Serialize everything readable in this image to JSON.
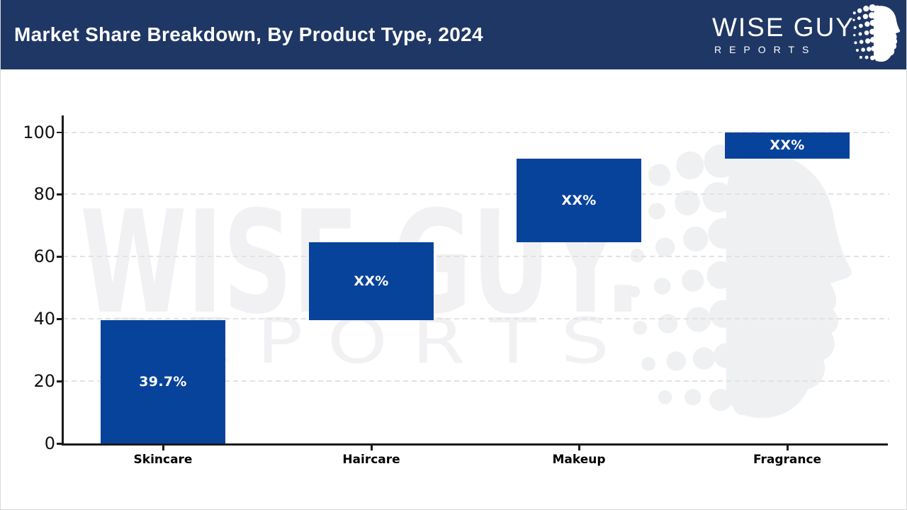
{
  "header": {
    "bg": "#1f3765",
    "title": "Market Share Breakdown, By Product Type, 2024",
    "logo": {
      "line1": "WISE GUY",
      "line2": "REPORTS"
    }
  },
  "watermark": {
    "line1": "WISE GUY.",
    "line2": "R E P O R T S"
  },
  "chart_data": {
    "type": "bar",
    "variant": "waterfall",
    "title": "Market Share Breakdown, By Product Type, 2024",
    "categories": [
      "Skincare",
      "Haircare",
      "Makeup",
      "Fragrance"
    ],
    "series": [
      {
        "name": "Market share (%)",
        "segments": [
          {
            "category": "Skincare",
            "start": 0,
            "end": 39.7,
            "label": "39.7%"
          },
          {
            "category": "Haircare",
            "start": 39.7,
            "end": 64.7,
            "label": "XX%"
          },
          {
            "category": "Makeup",
            "start": 64.7,
            "end": 91.5,
            "label": "XX%"
          },
          {
            "category": "Fragrance",
            "start": 91.5,
            "end": 100,
            "label": "XX%"
          }
        ]
      }
    ],
    "xlabel": "",
    "ylabel": "",
    "ylim": [
      0,
      105
    ],
    "yticks": [
      0,
      20,
      40,
      60,
      80,
      100
    ],
    "grid": {
      "axis": "y",
      "style": "dashed",
      "color": "#e2e2e2"
    },
    "bar_color": "#08439b",
    "bar_label_color": "#ffffff"
  }
}
